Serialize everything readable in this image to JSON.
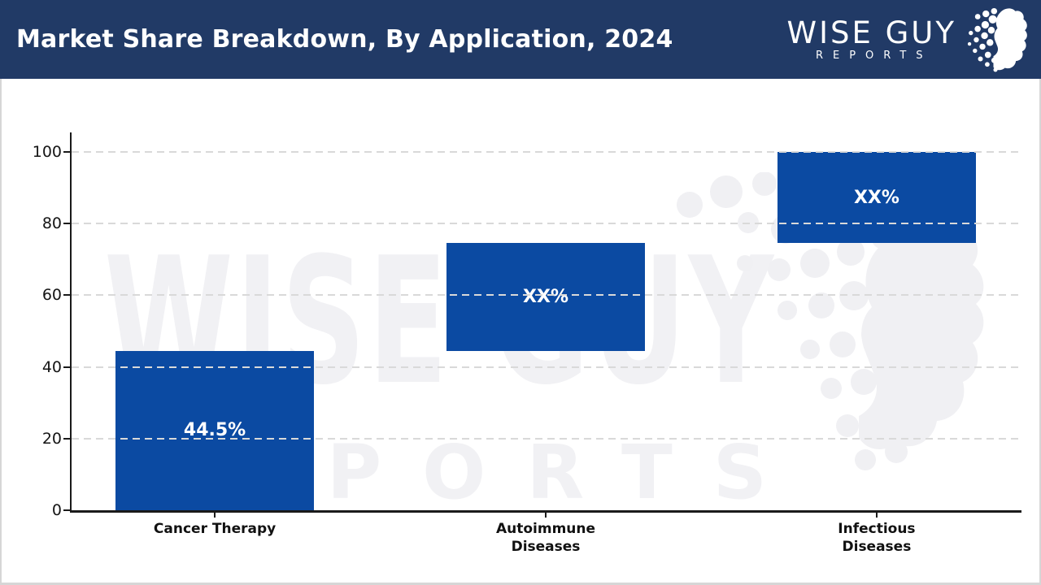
{
  "header": {
    "title": "Market Share Breakdown, By Application, 2024",
    "logo": {
      "line1": "WISE GUY",
      "line2": "REPORTS"
    }
  },
  "watermark": {
    "line1": "WISE GUY",
    "line2": "REPORTS"
  },
  "chart_data": {
    "type": "bar",
    "subtype": "waterfall (floating segment bars)",
    "title": "Market Share Breakdown, By Application, 2024",
    "categories": [
      "Cancer Therapy",
      "Autoimmune Diseases",
      "Infectious Diseases"
    ],
    "category_label_lines": [
      [
        "Cancer Therapy"
      ],
      [
        "Autoimmune",
        "Diseases"
      ],
      [
        "Infectious",
        "Diseases"
      ]
    ],
    "series": [
      {
        "name": "Market share (%)",
        "segments": [
          {
            "category": "Cancer Therapy",
            "start": 0,
            "end": 44.5,
            "label": "44.5%"
          },
          {
            "category": "Autoimmune Diseases",
            "start": 44.5,
            "end": 74.5,
            "label": "XX%"
          },
          {
            "category": "Infectious Diseases",
            "start": 74.5,
            "end": 100,
            "label": "XX%"
          }
        ]
      }
    ],
    "xlabel": "",
    "ylabel": "",
    "ylim": [
      0,
      100
    ],
    "yticks": [
      0,
      20,
      40,
      60,
      80,
      100
    ],
    "grid": "horizontal dashed",
    "legend": "none",
    "colors": {
      "bar": "#0b4aa2",
      "bar_label_text": "#ffffff",
      "header_background": "#213a66",
      "axis": "#1a1a1a",
      "gridline": "#d9d9d9",
      "watermark": "#f1f1f4"
    }
  }
}
